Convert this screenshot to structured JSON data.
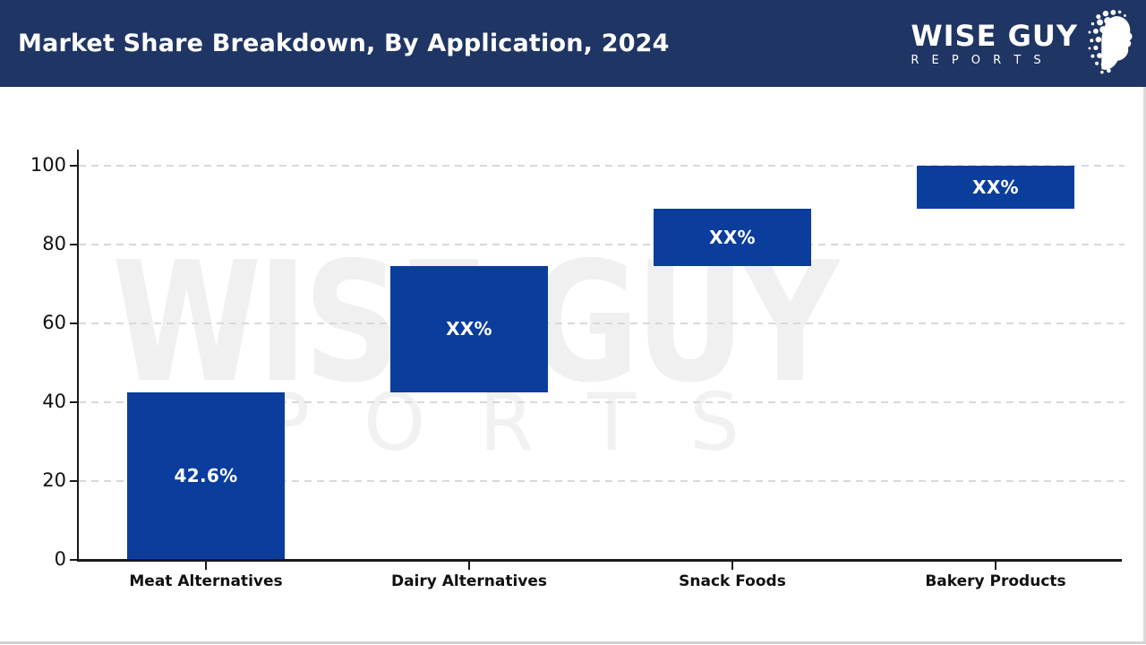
{
  "header": {
    "title": "Market Share Breakdown, By Application, 2024",
    "logo": {
      "line1": "WISE GUY",
      "line2": "R E P O R T S"
    }
  },
  "watermark": {
    "line1": "WISE GUY",
    "line2": "P O R T S"
  },
  "chart_data": {
    "type": "bar",
    "subtype": "waterfall",
    "title": "Market Share Breakdown, By Application, 2024",
    "categories": [
      "Meat Alternatives",
      "Dairy Alternatives",
      "Snack Foods",
      "Bakery Products"
    ],
    "segments": [
      {
        "category": "Meat Alternatives",
        "start": 0,
        "end": 42.6,
        "label": "42.6%"
      },
      {
        "category": "Dairy Alternatives",
        "start": 42.6,
        "end": 74.5,
        "label": "XX%"
      },
      {
        "category": "Snack Foods",
        "start": 74.5,
        "end": 89.2,
        "label": "XX%"
      },
      {
        "category": "Bakery Products",
        "start": 89.2,
        "end": 100,
        "label": "XX%"
      }
    ],
    "xlabel": "",
    "ylabel": "",
    "ylim": [
      0,
      104
    ],
    "yticks": [
      0,
      20,
      40,
      60,
      80,
      100
    ],
    "grid": "horizontal-dashed",
    "legend": "none",
    "bar_color": "#0b3d9d",
    "bar_label_color": "#ffffff"
  },
  "colors": {
    "header_bg": "#1f3563",
    "bar": "#0b3d9d",
    "grid": "#d9d9d9",
    "axis": "#1a1a1a",
    "watermark": "#f0f0f0",
    "title_text": "#ffffff"
  }
}
